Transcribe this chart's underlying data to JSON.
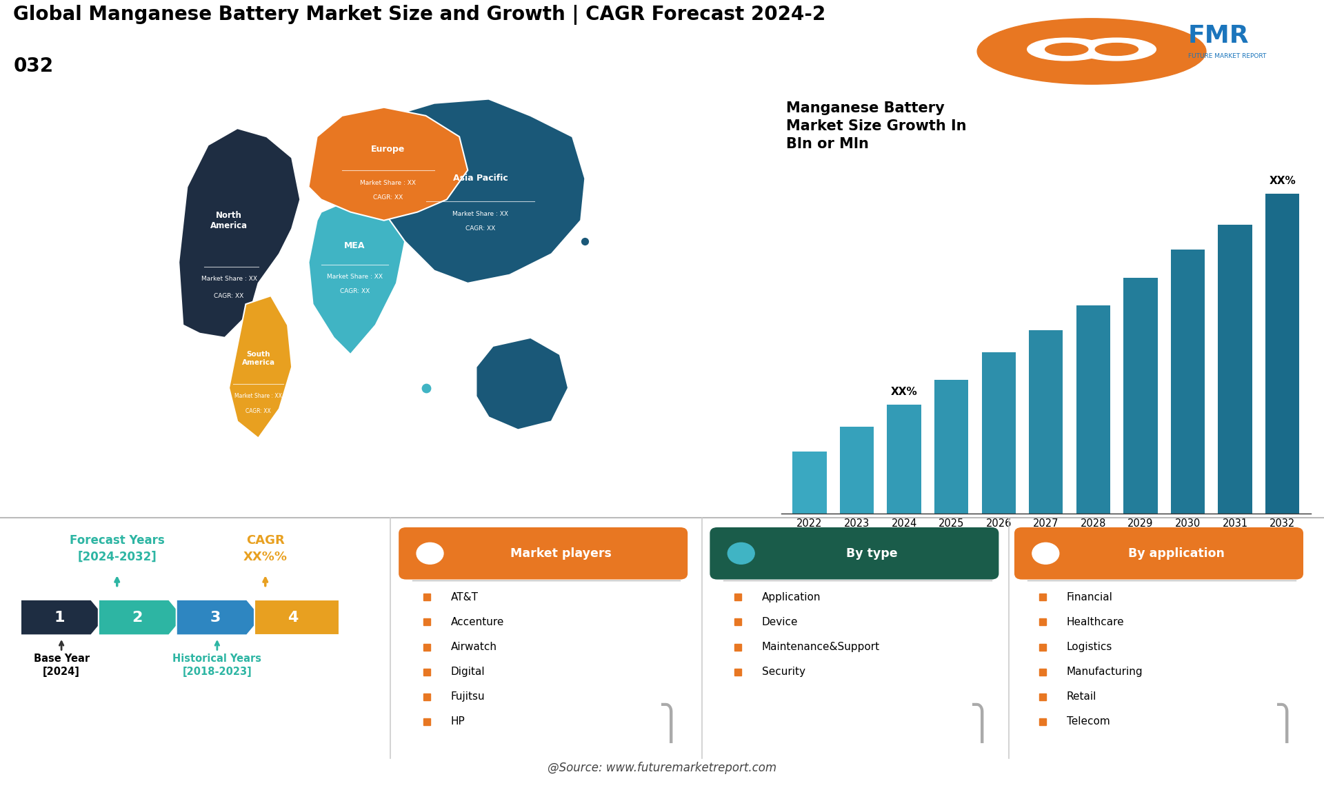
{
  "title_line1": "Global Manganese Battery Market Size and Growth | CAGR Forecast 2024-2",
  "title_line2": "032",
  "chart_title": "Manganese Battery\nMarket Size Growth In\nBln or Mln",
  "bar_years": [
    "2022",
    "2023",
    "2024",
    "2025",
    "2026",
    "2027",
    "2028",
    "2029",
    "2030",
    "2031",
    "2032"
  ],
  "bar_heights": [
    2.0,
    2.8,
    3.5,
    4.3,
    5.2,
    5.9,
    6.7,
    7.6,
    8.5,
    9.3,
    10.3
  ],
  "bar_color_light": "#3aa8c1",
  "bar_color_dark": "#1a6b8a",
  "xx_label_idx_1": 2,
  "xx_label_idx_2": 10,
  "source_text": "@Source: www.futuremarketreport.com",
  "market_players_title": "Market players",
  "market_players": [
    "AT&T",
    "Accenture",
    "Airwatch",
    "Digital",
    "Fujitsu",
    "HP"
  ],
  "by_type_title": "By type",
  "by_type_items": [
    "Application",
    "Device",
    "Maintenance&Support",
    "Security"
  ],
  "by_application_title": "By application",
  "by_application_items": [
    "Financial",
    "Healthcare",
    "Logistics",
    "Manufacturing",
    "Retail",
    "Telecom"
  ],
  "orange_color": "#e87722",
  "teal_header_color": "#1a5c4a",
  "teal_bullet_color": "#40b4c4",
  "dark_blue": "#1e2d42",
  "teal_seg2": "#2db5a3",
  "blue_seg3": "#2e86c1",
  "orange_seg4": "#e8a020",
  "na_color": "#1e2d42",
  "sa_color": "#e8a020",
  "europe_color": "#e87722",
  "mea_color": "#40b4c4",
  "ap_color": "#1a5878",
  "aus_color": "#1a5878",
  "fmr_blue": "#1b75bc",
  "bg_color": "#ffffff",
  "forecast_color": "#2db5a3",
  "cagr_color": "#e8a020",
  "arrow_bullet_color": "#e87722",
  "item_bullet_color": "#e87722"
}
